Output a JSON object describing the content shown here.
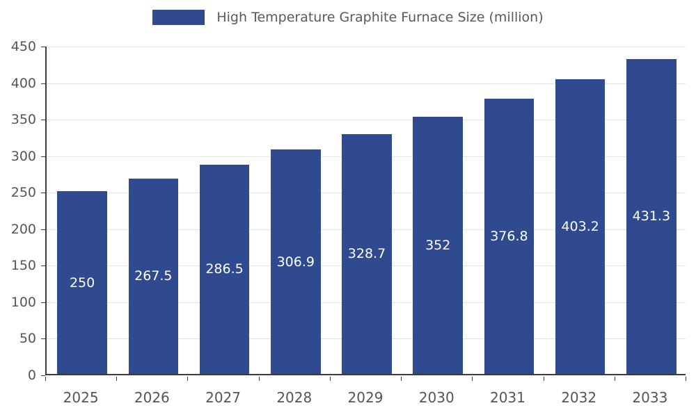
{
  "chart_data": {
    "type": "bar",
    "title": "High Temperature Graphite Furnace Size (million)",
    "categories": [
      "2025",
      "2026",
      "2027",
      "2028",
      "2029",
      "2030",
      "2031",
      "2032",
      "2033"
    ],
    "values": [
      250,
      267.5,
      286.5,
      306.9,
      328.7,
      352,
      376.8,
      403.2,
      431.3
    ],
    "xlabel": "",
    "ylabel": "",
    "ylim": [
      0,
      450
    ],
    "ytick_step": 50,
    "grid": true,
    "legend_position": "top",
    "bar_color": "#2f4a8f",
    "value_label_color": "#ffffff",
    "axis_text_color": "#555555"
  },
  "legend": {
    "label": "High Temperature Graphite Furnace Size (million)"
  }
}
